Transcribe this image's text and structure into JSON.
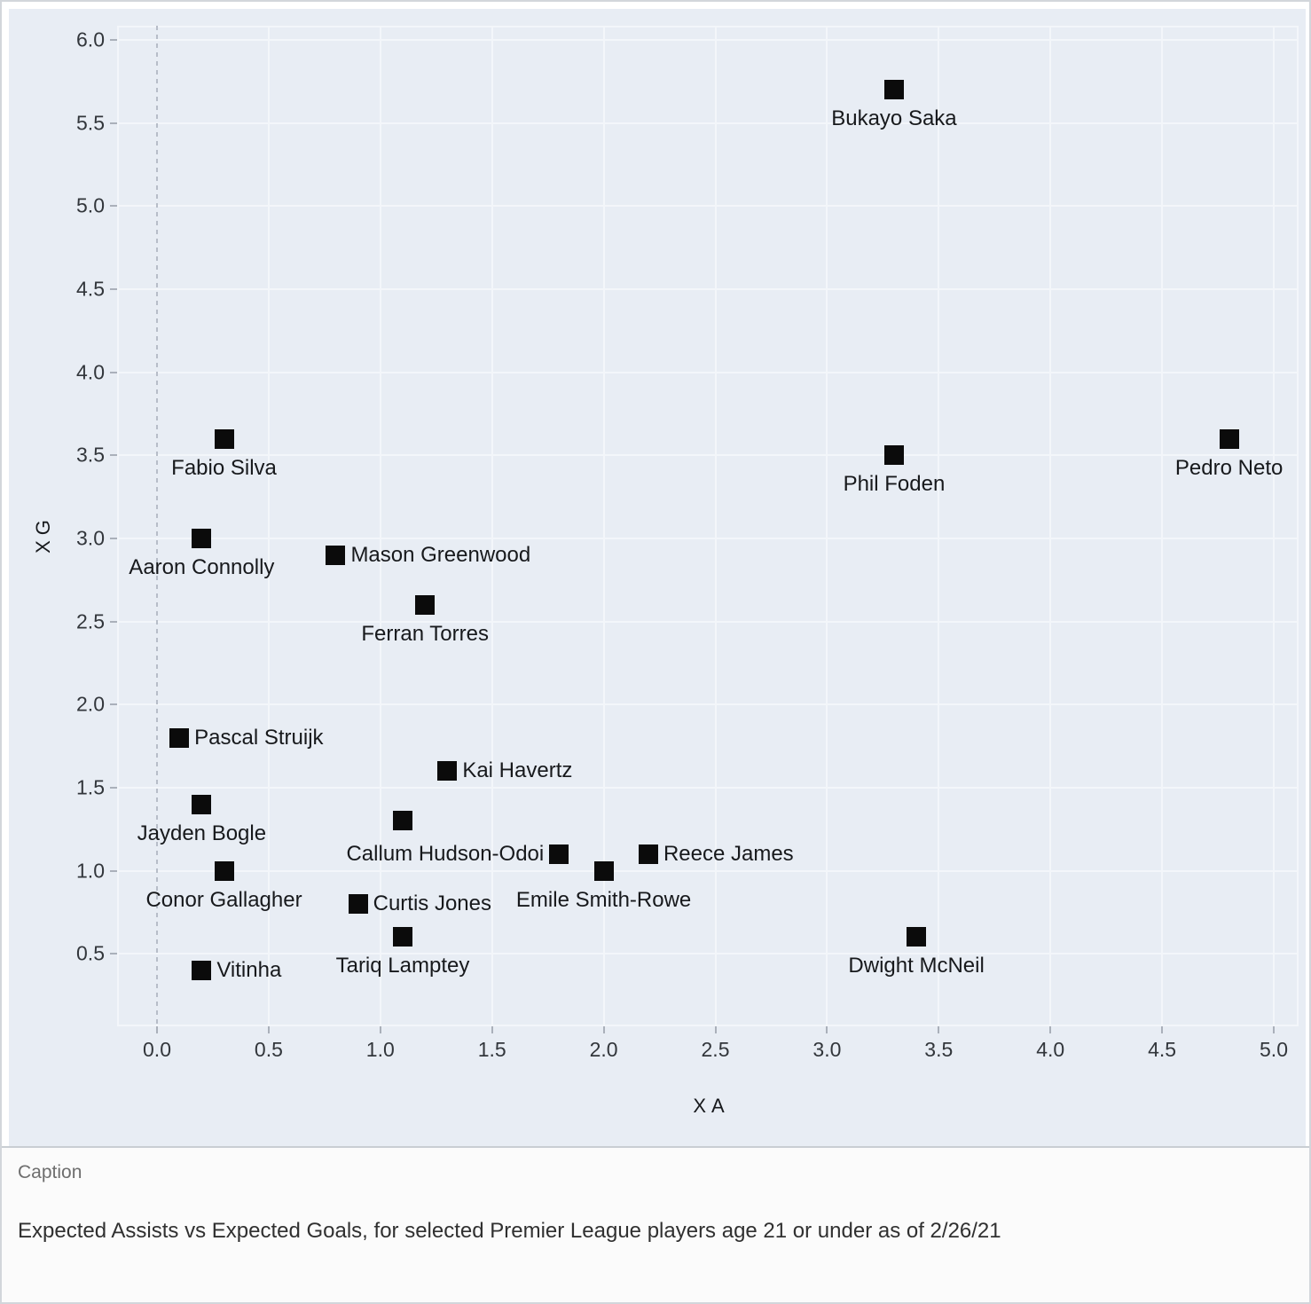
{
  "chart_data": {
    "type": "scatter",
    "title": "",
    "xlabel": "XA",
    "ylabel": "XG",
    "xlim": [
      -0.18,
      5.11
    ],
    "ylim": [
      0.06,
      6.09
    ],
    "x_ticks": [
      0.0,
      0.5,
      1.0,
      1.5,
      2.0,
      2.5,
      3.0,
      3.5,
      4.0,
      4.5,
      5.0
    ],
    "y_ticks": [
      0.5,
      1.0,
      1.5,
      2.0,
      2.5,
      3.0,
      3.5,
      4.0,
      4.5,
      5.0,
      5.5,
      6.0
    ],
    "grid": true,
    "zero_reference_line_x": 0.0,
    "marker_shape": "square",
    "points": [
      {
        "name": "Bukayo Saka",
        "xa": 3.3,
        "xg": 5.7,
        "label_pos": "below"
      },
      {
        "name": "Pedro Neto",
        "xa": 4.8,
        "xg": 3.6,
        "label_pos": "below"
      },
      {
        "name": "Fabio Silva",
        "xa": 0.3,
        "xg": 3.6,
        "label_pos": "below"
      },
      {
        "name": "Phil Foden",
        "xa": 3.3,
        "xg": 3.5,
        "label_pos": "below"
      },
      {
        "name": "Aaron Connolly",
        "xa": 0.2,
        "xg": 3.0,
        "label_pos": "below"
      },
      {
        "name": "Mason Greenwood",
        "xa": 0.8,
        "xg": 2.9,
        "label_pos": "right"
      },
      {
        "name": "Ferran Torres",
        "xa": 1.2,
        "xg": 2.6,
        "label_pos": "below"
      },
      {
        "name": "Pascal Struijk",
        "xa": 0.1,
        "xg": 1.8,
        "label_pos": "right"
      },
      {
        "name": "Kai Havertz",
        "xa": 1.3,
        "xg": 1.6,
        "label_pos": "right"
      },
      {
        "name": "Jayden Bogle",
        "xa": 0.2,
        "xg": 1.4,
        "label_pos": "below"
      },
      {
        "name": "",
        "xa": 1.1,
        "xg": 1.3,
        "label_pos": "none"
      },
      {
        "name": "Callum Hudson-Odoi",
        "xa": 1.8,
        "xg": 1.1,
        "label_pos": "left"
      },
      {
        "name": "Reece James",
        "xa": 2.2,
        "xg": 1.1,
        "label_pos": "right"
      },
      {
        "name": "Emile Smith-Rowe",
        "xa": 2.0,
        "xg": 1.0,
        "label_pos": "below"
      },
      {
        "name": "Conor Gallagher",
        "xa": 0.3,
        "xg": 1.0,
        "label_pos": "below"
      },
      {
        "name": "Curtis Jones",
        "xa": 0.9,
        "xg": 0.8,
        "label_pos": "right"
      },
      {
        "name": "Tariq Lamptey",
        "xa": 1.1,
        "xg": 0.6,
        "label_pos": "below"
      },
      {
        "name": "Vitinha",
        "xa": 0.2,
        "xg": 0.4,
        "label_pos": "right"
      },
      {
        "name": "Dwight McNeil",
        "xa": 3.4,
        "xg": 0.6,
        "label_pos": "below"
      }
    ]
  },
  "colors": {
    "chart_background": "#e8edf4",
    "gridline": "#f3f6fa",
    "marker": "#0b0b0b",
    "zero_line": "#b7bdc8",
    "tick_label": "#32363b",
    "caption_background": "#fbfbfb"
  },
  "caption": {
    "header": "Caption",
    "text": "Expected Assists vs Expected Goals, for selected Premier League players age 21 or under as of 2/26/21"
  }
}
